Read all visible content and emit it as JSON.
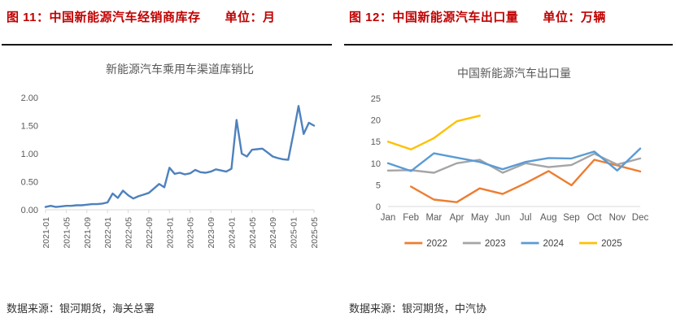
{
  "panels": [
    {
      "header": {
        "title": "图 11：中国新能源汽车经销商库存",
        "unit": "单位：月"
      },
      "source": "数据来源：银河期货，海关总署"
    },
    {
      "header": {
        "title": "图 12：中国新能源汽车出口量",
        "unit": "单位：万辆"
      },
      "source": "数据来源：银河期货，中汽协"
    }
  ],
  "colors": {
    "title_red": "#c00000",
    "chart_text": "#595959",
    "axis_line": "#d9d9d9",
    "series_blue_left": "#4e81bd",
    "series_2022": "#ED7D31",
    "series_2023": "#A5A5A5",
    "series_2024": "#5B9BD5",
    "series_2025": "#FFC000"
  },
  "chart_data": [
    {
      "type": "line",
      "title": "新能源汽车乘用车渠道库销比",
      "x": [
        "2021-01",
        "2021-02",
        "2021-03",
        "2021-04",
        "2021-05",
        "2021-06",
        "2021-07",
        "2021-08",
        "2021-09",
        "2021-10",
        "2021-11",
        "2021-12",
        "2022-01",
        "2022-02",
        "2022-03",
        "2022-04",
        "2022-05",
        "2022-06",
        "2022-07",
        "2022-08",
        "2022-09",
        "2022-10",
        "2022-11",
        "2022-12",
        "2023-01",
        "2023-02",
        "2023-03",
        "2023-04",
        "2023-05",
        "2023-06",
        "2023-07",
        "2023-08",
        "2023-09",
        "2023-10",
        "2023-11",
        "2023-12",
        "2024-01",
        "2024-02",
        "2024-03",
        "2024-04",
        "2024-05",
        "2024-06",
        "2024-07",
        "2024-08",
        "2024-09",
        "2024-10",
        "2024-11",
        "2024-12",
        "2025-01",
        "2025-02",
        "2025-03",
        "2025-04",
        "2025-05"
      ],
      "xtick_labels_shown": [
        "2021-01",
        "2021-05",
        "2021-09",
        "2022-01",
        "2022-05",
        "2022-09",
        "2023-01",
        "2023-05",
        "2023-09",
        "2024-01",
        "2024-05",
        "2024-09",
        "2025-01",
        "2025-05"
      ],
      "series": [
        {
          "name": "渠道库销比",
          "color": "#4e81bd",
          "values": [
            0.05,
            0.07,
            0.05,
            0.06,
            0.07,
            0.07,
            0.08,
            0.08,
            0.09,
            0.1,
            0.1,
            0.11,
            0.13,
            0.29,
            0.21,
            0.34,
            0.26,
            0.2,
            0.24,
            0.27,
            0.3,
            0.38,
            0.46,
            0.4,
            0.75,
            0.64,
            0.66,
            0.63,
            0.65,
            0.71,
            0.67,
            0.66,
            0.68,
            0.72,
            0.7,
            0.68,
            0.73,
            1.6,
            1.0,
            0.95,
            1.07,
            1.08,
            1.09,
            1.02,
            0.95,
            0.92,
            0.9,
            0.89,
            1.35,
            1.85,
            1.35,
            1.55,
            1.5
          ]
        }
      ],
      "xlabel": "",
      "ylabel": "",
      "ylim": [
        0,
        2
      ],
      "ytick_step": 0.5,
      "ytick_decimals": 2,
      "ytick_labels": [
        "0.00",
        "0.50",
        "1.00",
        "1.50",
        "2.00"
      ],
      "xtick_every": 4,
      "xtick_rotate": true,
      "grid": false,
      "legend": false
    },
    {
      "type": "line",
      "title": "中国新能源汽车出口量",
      "x": [
        "Jan",
        "Feb",
        "Mar",
        "Apr",
        "May",
        "Jun",
        "Jul",
        "Aug",
        "Sep",
        "Oct",
        "Nov",
        "Dec"
      ],
      "series": [
        {
          "name": "2022",
          "color": "#ED7D31",
          "values": [
            null,
            4.6,
            1.6,
            1.0,
            4.2,
            2.9,
            5.4,
            8.2,
            4.9,
            10.8,
            9.5,
            8.1
          ]
        },
        {
          "name": "2023",
          "color": "#A5A5A5",
          "values": [
            8.3,
            8.4,
            7.8,
            10.0,
            10.8,
            7.8,
            10.0,
            9.1,
            9.6,
            12.2,
            9.7,
            11.1
          ]
        },
        {
          "name": "2024",
          "color": "#5B9BD5",
          "values": [
            10.0,
            8.2,
            12.3,
            11.3,
            10.3,
            8.6,
            10.3,
            11.2,
            11.1,
            12.7,
            8.3,
            13.4
          ]
        },
        {
          "name": "2025",
          "color": "#FFC000",
          "values": [
            15.0,
            13.2,
            15.8,
            19.7,
            21.0,
            null,
            null,
            null,
            null,
            null,
            null,
            null
          ]
        }
      ],
      "xlabel": "",
      "ylabel": "",
      "ylim": [
        0,
        25
      ],
      "ytick_step": 5,
      "ytick_decimals": 0,
      "ytick_labels": [
        "0",
        "5",
        "10",
        "15",
        "20",
        "25"
      ],
      "xtick_every": 1,
      "xtick_rotate": false,
      "grid": false,
      "legend": true,
      "legend_position": "bottom"
    }
  ]
}
